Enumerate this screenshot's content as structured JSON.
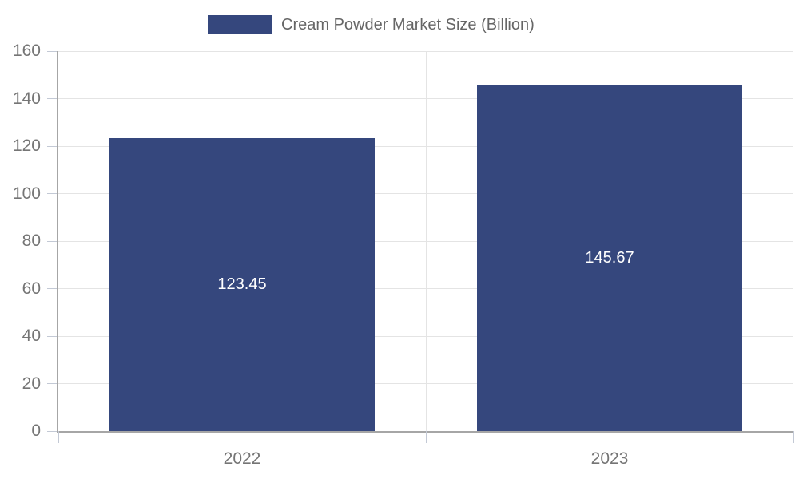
{
  "chart_data": {
    "type": "bar",
    "title": "Cream Powder Market Size (Billion)",
    "legend": {
      "label": "Cream Powder Market Size (Billion)",
      "position": "top"
    },
    "categories": [
      "2022",
      "2023"
    ],
    "series": [
      {
        "name": "Cream Powder Market Size (Billion)",
        "values": [
          123.45,
          145.67
        ]
      }
    ],
    "value_labels": [
      "123.45",
      "145.67"
    ],
    "xlabel": "",
    "ylabel": "",
    "ylim": [
      0,
      160
    ],
    "yticks": [
      0,
      20,
      40,
      60,
      80,
      100,
      120,
      140,
      160
    ],
    "grid": true,
    "colors": {
      "bar": "#35477d",
      "data_label": "#ffffff",
      "axis_line": "#a6a6a6",
      "tick_mark": "#c3c9d5",
      "gridline": "#e4e4e4",
      "tick_label": "#757575",
      "legend_text": "#666666",
      "background": "#ffffff"
    }
  }
}
